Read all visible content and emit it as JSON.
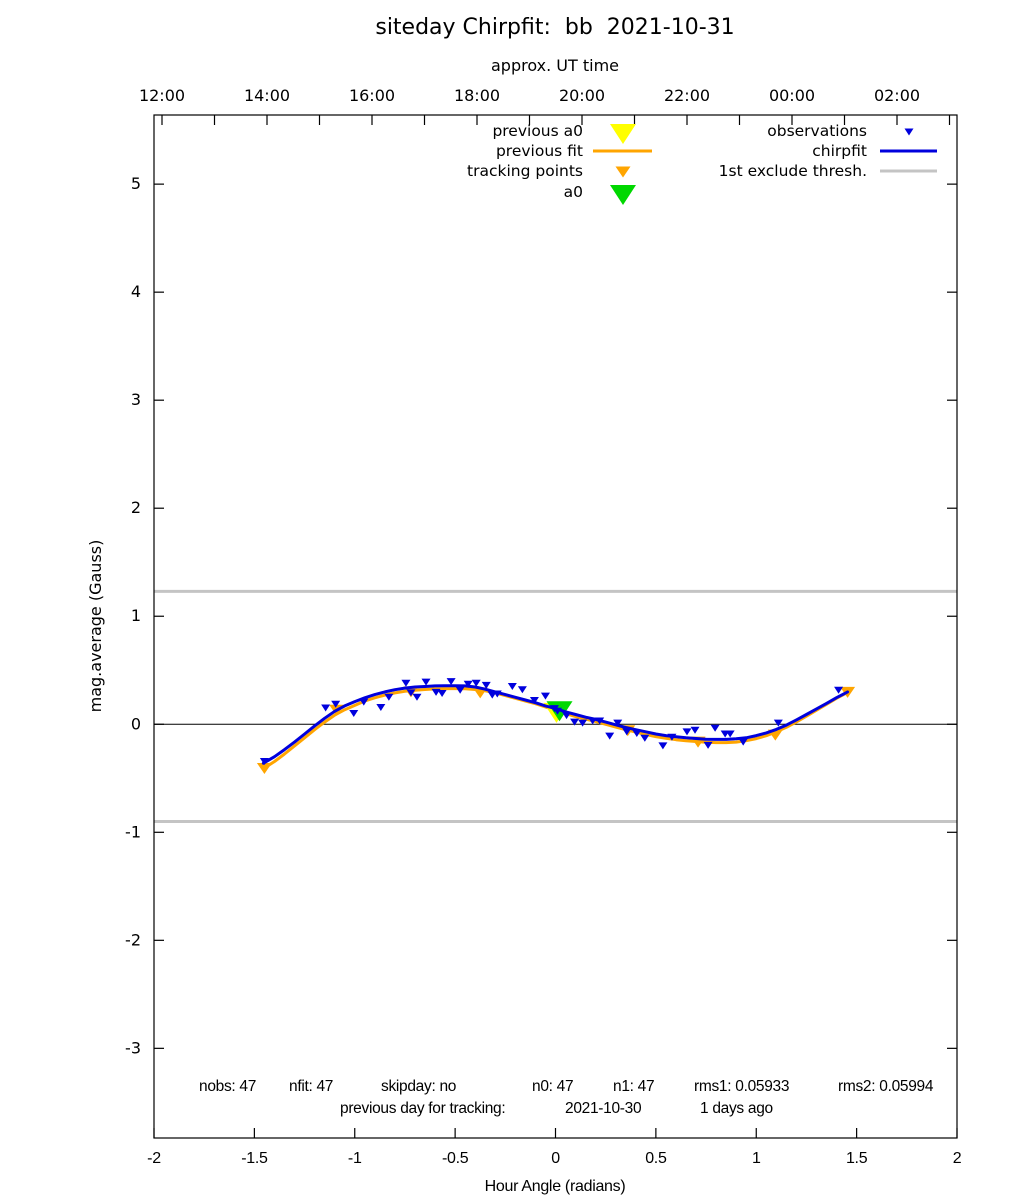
{
  "chart_data": {
    "type": "scatter",
    "title": "siteday Chirpfit:  bb  2021-10-31",
    "x2label": "approx. UT time",
    "xlabel": "Hour Angle (radians)",
    "ylabel": "mag.average (Gauss)",
    "xlim": [
      -2,
      2
    ],
    "ylim": [
      -3.83,
      5.64
    ],
    "grid": false,
    "x_ticks": [
      "-2",
      "-1.5",
      "-1",
      "-0.5",
      "0",
      "0.5",
      "1",
      "1.5",
      "2"
    ],
    "x_tick_values": [
      -2,
      -1.5,
      -1,
      -0.5,
      0,
      0.5,
      1,
      1.5,
      2
    ],
    "y_ticks": [
      "5",
      "4",
      "3",
      "2",
      "1",
      "0",
      "-1",
      "-2",
      "-3"
    ],
    "y_tick_values": [
      5,
      4,
      3,
      2,
      1,
      0,
      -1,
      -2,
      -3
    ],
    "x2_tick_labels": [
      "12:00",
      "14:00",
      "16:00",
      "18:00",
      "20:00",
      "22:00",
      "00:00",
      "02:00"
    ],
    "zero_line_y": 0,
    "exclude_thresholds": [
      1.23,
      -0.9
    ],
    "colors": {
      "observations": "#0000dd",
      "chirpfit": "#0000dd",
      "previous_fit": "#ffa500",
      "tracking_points": "#ffa500",
      "previous_a0": "#ffff00",
      "a0": "#00d800",
      "threshold": "#c4c4c4",
      "axis": "#000000"
    },
    "series": [
      {
        "name": "previous fit",
        "type": "line",
        "color": "#ffa500",
        "points": [
          [
            -1.455,
            -0.41
          ],
          [
            -1.4,
            -0.345
          ],
          [
            -1.35,
            -0.275
          ],
          [
            -1.3,
            -0.2
          ],
          [
            -1.25,
            -0.125
          ],
          [
            -1.2,
            -0.05
          ],
          [
            -1.15,
            0.02
          ],
          [
            -1.1,
            0.085
          ],
          [
            -1.05,
            0.135
          ],
          [
            -1.0,
            0.175
          ],
          [
            -0.95,
            0.215
          ],
          [
            -0.9,
            0.245
          ],
          [
            -0.85,
            0.27
          ],
          [
            -0.8,
            0.29
          ],
          [
            -0.75,
            0.305
          ],
          [
            -0.7,
            0.315
          ],
          [
            -0.65,
            0.322
          ],
          [
            -0.6,
            0.327
          ],
          [
            -0.55,
            0.33
          ],
          [
            -0.5,
            0.33
          ],
          [
            -0.45,
            0.328
          ],
          [
            -0.4,
            0.322
          ],
          [
            -0.35,
            0.31
          ],
          [
            -0.3,
            0.29
          ],
          [
            -0.25,
            0.265
          ],
          [
            -0.2,
            0.24
          ],
          [
            -0.15,
            0.215
          ],
          [
            -0.1,
            0.19
          ],
          [
            -0.05,
            0.16
          ],
          [
            0.0,
            0.13
          ],
          [
            0.05,
            0.1
          ],
          [
            0.1,
            0.072
          ],
          [
            0.15,
            0.048
          ],
          [
            0.2,
            0.025
          ],
          [
            0.25,
            0.0
          ],
          [
            0.3,
            -0.025
          ],
          [
            0.35,
            -0.05
          ],
          [
            0.4,
            -0.072
          ],
          [
            0.45,
            -0.095
          ],
          [
            0.5,
            -0.115
          ],
          [
            0.55,
            -0.13
          ],
          [
            0.6,
            -0.143
          ],
          [
            0.65,
            -0.153
          ],
          [
            0.7,
            -0.16
          ],
          [
            0.75,
            -0.167
          ],
          [
            0.8,
            -0.17
          ],
          [
            0.85,
            -0.17
          ],
          [
            0.9,
            -0.165
          ],
          [
            0.95,
            -0.152
          ],
          [
            1.0,
            -0.133
          ],
          [
            1.05,
            -0.106
          ],
          [
            1.1,
            -0.07
          ],
          [
            1.15,
            -0.028
          ],
          [
            1.2,
            0.022
          ],
          [
            1.25,
            0.075
          ],
          [
            1.3,
            0.13
          ],
          [
            1.35,
            0.185
          ],
          [
            1.4,
            0.24
          ],
          [
            1.455,
            0.295
          ]
        ]
      },
      {
        "name": "tracking points",
        "type": "scatter",
        "marker": "triangle-medium",
        "color": "#ffa500",
        "points": [
          [
            -1.45,
            -0.41
          ],
          [
            -1.09,
            0.13
          ],
          [
            -0.72,
            0.3
          ],
          [
            -0.375,
            0.29
          ],
          [
            0.0,
            0.09
          ],
          [
            0.36,
            -0.06
          ],
          [
            0.71,
            -0.165
          ],
          [
            1.095,
            -0.1
          ],
          [
            1.455,
            0.295
          ]
        ]
      },
      {
        "name": "previous a0",
        "type": "scatter",
        "marker": "triangle-large",
        "color": "#ffff00",
        "points": [
          [
            0.005,
            0.105
          ]
        ]
      },
      {
        "name": "a0",
        "type": "scatter",
        "marker": "triangle-large",
        "color": "#00d800",
        "points": [
          [
            0.02,
            0.12
          ]
        ]
      },
      {
        "name": "chirpfit",
        "type": "line",
        "color": "#0000dd",
        "points": [
          [
            -1.455,
            -0.36
          ],
          [
            -1.4,
            -0.3
          ],
          [
            -1.35,
            -0.235
          ],
          [
            -1.3,
            -0.165
          ],
          [
            -1.25,
            -0.09
          ],
          [
            -1.2,
            -0.015
          ],
          [
            -1.15,
            0.055
          ],
          [
            -1.1,
            0.12
          ],
          [
            -1.05,
            0.17
          ],
          [
            -1.0,
            0.21
          ],
          [
            -0.95,
            0.245
          ],
          [
            -0.9,
            0.275
          ],
          [
            -0.85,
            0.3
          ],
          [
            -0.8,
            0.32
          ],
          [
            -0.75,
            0.335
          ],
          [
            -0.7,
            0.345
          ],
          [
            -0.65,
            0.35
          ],
          [
            -0.6,
            0.355
          ],
          [
            -0.55,
            0.357
          ],
          [
            -0.5,
            0.357
          ],
          [
            -0.45,
            0.355
          ],
          [
            -0.4,
            0.345
          ],
          [
            -0.35,
            0.325
          ],
          [
            -0.3,
            0.3
          ],
          [
            -0.25,
            0.275
          ],
          [
            -0.2,
            0.25
          ],
          [
            -0.15,
            0.225
          ],
          [
            -0.1,
            0.2
          ],
          [
            -0.05,
            0.17
          ],
          [
            0.0,
            0.145
          ],
          [
            0.05,
            0.115
          ],
          [
            0.1,
            0.09
          ],
          [
            0.15,
            0.065
          ],
          [
            0.2,
            0.045
          ],
          [
            0.25,
            0.02
          ],
          [
            0.3,
            -0.005
          ],
          [
            0.35,
            -0.03
          ],
          [
            0.4,
            -0.05
          ],
          [
            0.45,
            -0.07
          ],
          [
            0.5,
            -0.09
          ],
          [
            0.55,
            -0.105
          ],
          [
            0.6,
            -0.115
          ],
          [
            0.65,
            -0.125
          ],
          [
            0.7,
            -0.132
          ],
          [
            0.75,
            -0.138
          ],
          [
            0.8,
            -0.14
          ],
          [
            0.85,
            -0.14
          ],
          [
            0.9,
            -0.135
          ],
          [
            0.95,
            -0.125
          ],
          [
            1.0,
            -0.105
          ],
          [
            1.05,
            -0.08
          ],
          [
            1.1,
            -0.048
          ],
          [
            1.15,
            -0.008
          ],
          [
            1.2,
            0.04
          ],
          [
            1.25,
            0.09
          ],
          [
            1.3,
            0.142
          ],
          [
            1.35,
            0.193
          ],
          [
            1.4,
            0.246
          ],
          [
            1.455,
            0.3
          ]
        ]
      },
      {
        "name": "observations",
        "type": "scatter",
        "marker": "triangle-small",
        "color": "#0000dd",
        "points": [
          [
            -1.45,
            -0.345
          ],
          [
            -1.145,
            0.15
          ],
          [
            -1.095,
            0.185
          ],
          [
            -1.005,
            0.1
          ],
          [
            -0.955,
            0.205
          ],
          [
            -0.87,
            0.155
          ],
          [
            -0.83,
            0.25
          ],
          [
            -0.745,
            0.38
          ],
          [
            -0.72,
            0.29
          ],
          [
            -0.69,
            0.25
          ],
          [
            -0.645,
            0.39
          ],
          [
            -0.595,
            0.295
          ],
          [
            -0.565,
            0.285
          ],
          [
            -0.52,
            0.395
          ],
          [
            -0.475,
            0.315
          ],
          [
            -0.435,
            0.37
          ],
          [
            -0.395,
            0.38
          ],
          [
            -0.345,
            0.36
          ],
          [
            -0.315,
            0.27
          ],
          [
            -0.29,
            0.28
          ],
          [
            -0.215,
            0.35
          ],
          [
            -0.165,
            0.32
          ],
          [
            -0.105,
            0.22
          ],
          [
            -0.05,
            0.26
          ],
          [
            -0.005,
            0.145
          ],
          [
            0.01,
            0.12
          ],
          [
            0.055,
            0.08
          ],
          [
            0.095,
            0.02
          ],
          [
            0.135,
            0.01
          ],
          [
            0.185,
            0.03
          ],
          [
            0.22,
            0.03
          ],
          [
            0.27,
            -0.11
          ],
          [
            0.31,
            0.01
          ],
          [
            0.355,
            -0.07
          ],
          [
            0.405,
            -0.085
          ],
          [
            0.445,
            -0.13
          ],
          [
            0.535,
            -0.2
          ],
          [
            0.58,
            -0.12
          ],
          [
            0.655,
            -0.07
          ],
          [
            0.695,
            -0.055
          ],
          [
            0.76,
            -0.195
          ],
          [
            0.795,
            -0.037
          ],
          [
            0.845,
            -0.09
          ],
          [
            0.87,
            -0.09
          ],
          [
            0.935,
            -0.165
          ],
          [
            1.11,
            0.01
          ],
          [
            1.41,
            0.315
          ]
        ]
      }
    ],
    "legend": {
      "position": "top-inside",
      "left_column": [
        {
          "label": "previous a0",
          "marker": "triangle-large",
          "color": "#ffff00"
        },
        {
          "label": "previous fit",
          "marker": "line",
          "color": "#ffa500"
        },
        {
          "label": "tracking points",
          "marker": "triangle-medium",
          "color": "#ffa500"
        },
        {
          "label": "a0",
          "marker": "triangle-large",
          "color": "#00d800"
        }
      ],
      "right_column": [
        {
          "label": "observations",
          "marker": "triangle-small",
          "color": "#0000dd"
        },
        {
          "label": "chirpfit",
          "marker": "line",
          "color": "#0000dd"
        },
        {
          "label": "1st exclude thresh.",
          "marker": "line",
          "color": "#c4c4c4"
        }
      ]
    }
  },
  "stats": {
    "nobs": "nobs: 47",
    "nfit": "nfit: 47",
    "skipday": "skipday: no",
    "n0": "n0: 47",
    "n1": "n1: 47",
    "rms1": "rms1: 0.05933",
    "rms2": "rms2: 0.05994",
    "tracking_label": "previous day for tracking:",
    "tracking_date": "2021-10-30",
    "tracking_ago": "1 days ago"
  }
}
